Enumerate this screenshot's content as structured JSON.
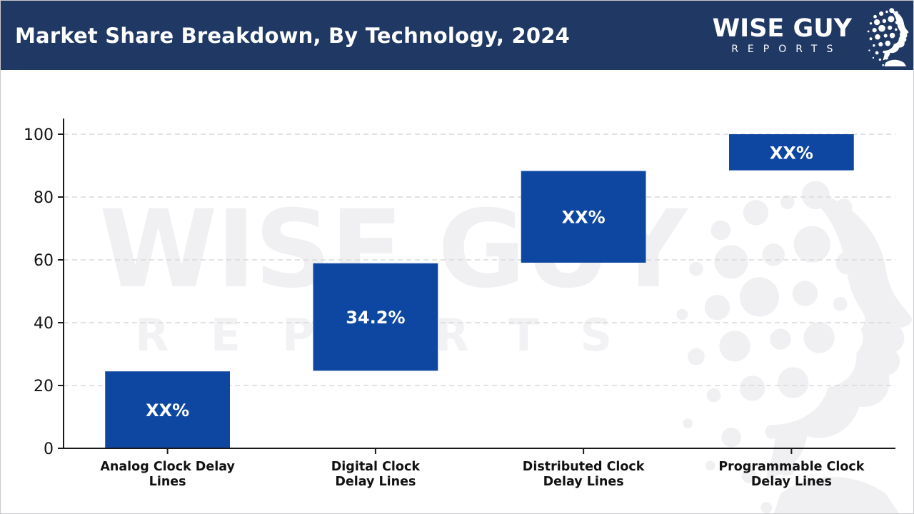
{
  "header": {
    "title": "Market Share Breakdown, By Technology, 2024",
    "bg_color": "#1f3864",
    "logo": {
      "wordmark": "WISE GUY",
      "tagline": "REPORTS"
    }
  },
  "watermark": {
    "wordmark": "WISE GUY",
    "tagline": "REPORTS"
  },
  "chart_data": {
    "type": "bar",
    "variant": "waterfall",
    "title": "Market Share Breakdown, By Technology, 2024",
    "categories": [
      [
        "Analog Clock Delay",
        "Lines"
      ],
      [
        "Digital Clock",
        "Delay Lines"
      ],
      [
        "Distributed Clock",
        "Delay Lines"
      ],
      [
        "Programmable Clock",
        "Delay Lines"
      ]
    ],
    "segments": [
      {
        "category": "Analog Clock Delay Lines",
        "start": 0,
        "end": 24.5,
        "label": "XX%"
      },
      {
        "category": "Digital Clock Delay Lines",
        "start": 24.7,
        "end": 58.9,
        "label": "34.2%"
      },
      {
        "category": "Distributed Clock Delay Lines",
        "start": 59.1,
        "end": 88.3,
        "label": "XX%"
      },
      {
        "category": "Programmable Clock Delay Lines",
        "start": 88.5,
        "end": 100,
        "label": "XX%"
      }
    ],
    "ylim": [
      0,
      100
    ],
    "yticks": [
      0,
      20,
      40,
      60,
      80,
      100
    ],
    "grid": {
      "axis": "y",
      "style": "dashed",
      "color": "#d9d9d9"
    },
    "bar_color": "#0d47a1",
    "bar_label_color": "#ffffff",
    "axis_color": "#1a1a1a",
    "tick_label_color": "#111111",
    "legend": "none"
  }
}
